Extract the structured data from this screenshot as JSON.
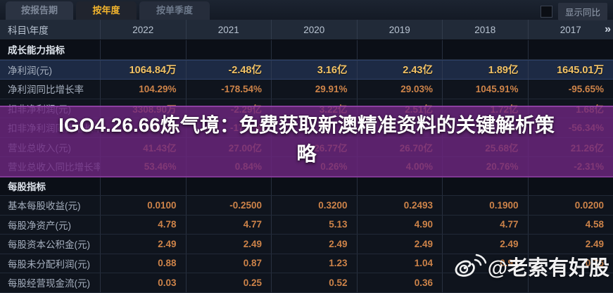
{
  "tabs": {
    "report_period": "按报告期",
    "annual": "按年度",
    "single_quarter": "按单季度"
  },
  "toolbar": {
    "show_yoy_label": "显示同比"
  },
  "table": {
    "corner_label": "科目\\年度",
    "years": [
      "2022",
      "2021",
      "2020",
      "2019",
      "2018",
      "2017"
    ],
    "more_icon": "»",
    "rows": [
      {
        "type": "section",
        "label": "成长能力指标"
      },
      {
        "type": "data",
        "label": "净利润(元)",
        "highlight": true,
        "values": [
          "1064.84万",
          "-2.48亿",
          "3.16亿",
          "2.43亿",
          "1.89亿",
          "1645.01万"
        ]
      },
      {
        "type": "data",
        "label": "净利润同比增长率",
        "values": [
          "104.29%",
          "-178.54%",
          "29.91%",
          "29.03%",
          "1045.91%",
          "-95.65%"
        ]
      },
      {
        "type": "data",
        "label": "扣非净利润(元)",
        "values": [
          "3308.90万",
          "-2.29亿",
          "3.22亿",
          "2.51亿",
          "1.72亿",
          "1.68亿"
        ]
      },
      {
        "type": "data",
        "label": "扣非净利润同比增长率",
        "values": [
          "11…%",
          "-17…%",
          "",
          "",
          "",
          "-56.34%"
        ]
      },
      {
        "type": "data",
        "label": "营业总收入(元)",
        "values": [
          "41.43亿",
          "27.00亿",
          "26.77亿",
          "26.70亿",
          "25.68亿",
          "21.26亿"
        ]
      },
      {
        "type": "data",
        "label": "营业总收入同比增长率",
        "values": [
          "53.46%",
          "0.84%",
          "0.26%",
          "4.00%",
          "20.76%",
          "-2.31%"
        ]
      },
      {
        "type": "section",
        "label": "每股指标"
      },
      {
        "type": "data",
        "label": "基本每股收益(元)",
        "values": [
          "0.0100",
          "-0.2500",
          "0.3200",
          "0.2493",
          "0.1900",
          "0.0200"
        ]
      },
      {
        "type": "data",
        "label": "每股净资产(元)",
        "values": [
          "4.78",
          "4.77",
          "5.13",
          "4.90",
          "4.77",
          "4.58"
        ]
      },
      {
        "type": "data",
        "label": "每股资本公积金(元)",
        "values": [
          "2.49",
          "2.49",
          "2.49",
          "2.49",
          "2.49",
          "2.49"
        ]
      },
      {
        "type": "data",
        "label": "每股未分配利润(元)",
        "values": [
          "0.88",
          "0.87",
          "1.23",
          "1.04",
          "0.93",
          "0.76"
        ]
      },
      {
        "type": "data",
        "label": "每股经营现金流(元)",
        "values": [
          "0.03",
          "0.25",
          "0.52",
          "0.36",
          "",
          ""
        ]
      }
    ]
  },
  "overlay": {
    "headline_line1": "IGO4.26.66炼气境：免费获取新澳精准资料的关键解析策",
    "headline_line2": "略"
  },
  "watermark": {
    "handle": "@老索有好股"
  },
  "colors": {
    "accent_gold": "#f2b42d",
    "highlight_value": "#f2c367",
    "value_orange": "#cd8349",
    "overlay_purple": "#6e2681",
    "highlight_row_bg": "#1d2a44"
  }
}
